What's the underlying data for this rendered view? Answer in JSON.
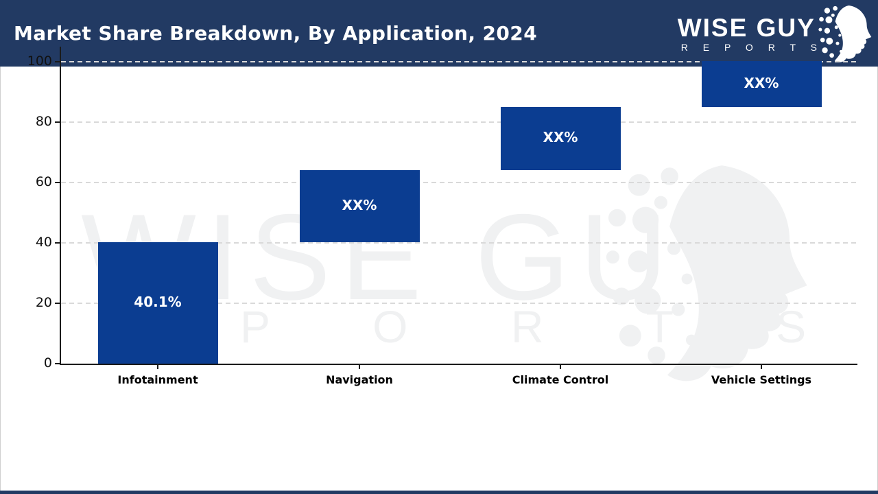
{
  "header": {
    "title": "Market Share Breakdown, By Application, 2024",
    "bg_color": "#223a63",
    "logo": {
      "line1": "WISE GUY",
      "line2": "R E P O R T S"
    }
  },
  "watermark": {
    "line1": "WISE GUY",
    "line2": "P O R T S"
  },
  "chart_data": {
    "type": "bar",
    "subtype": "floating-waterfall",
    "title": "Market Share Breakdown, By Application, 2024",
    "categories": [
      "Infotainment",
      "Navigation",
      "Climate Control",
      "Vehicle Settings"
    ],
    "segments": [
      {
        "category": "Infotainment",
        "start": 0,
        "end": 40.1,
        "label": "40.1%"
      },
      {
        "category": "Navigation",
        "start": 40.1,
        "end": 64.1,
        "label": "XX%"
      },
      {
        "category": "Climate Control",
        "start": 64.1,
        "end": 84.9,
        "label": "XX%"
      },
      {
        "category": "Vehicle Settings",
        "start": 84.9,
        "end": 100.1,
        "label": "XX%"
      }
    ],
    "yticks": [
      0,
      20,
      40,
      60,
      80,
      100
    ],
    "ylim": [
      0,
      105
    ],
    "xlabel": "",
    "ylabel": "",
    "grid": "horizontal-dashed",
    "legend": "none",
    "bar_color": "#0b3d91",
    "bar_label_color": "#ffffff",
    "axis_color": "#1a1a1a",
    "grid_color": "#d9d9d9",
    "header_color": "#223a63"
  }
}
